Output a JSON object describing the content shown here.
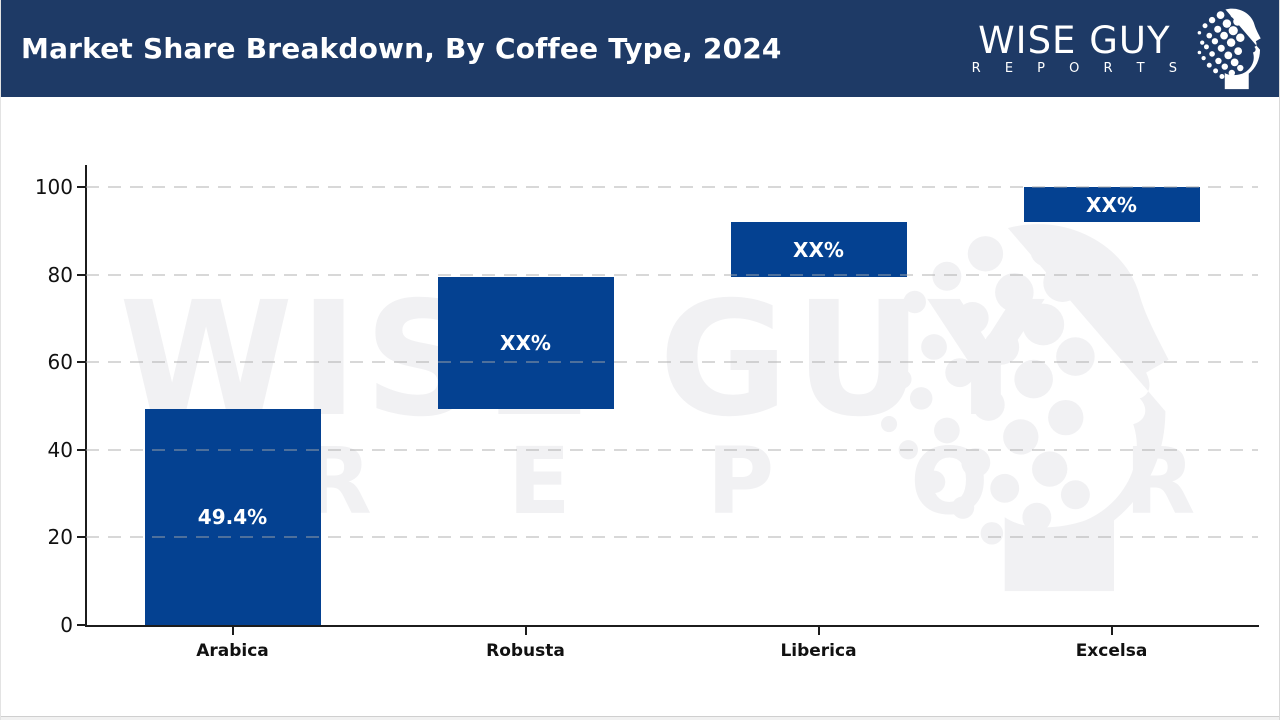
{
  "header": {
    "title": "Market Share Breakdown, By Coffee Type, 2024",
    "background_color": "#1e3a66",
    "logo": {
      "wordmark": "WISE GUY",
      "subtext": "R E P O R T S"
    }
  },
  "watermark": {
    "line1": "WISE GUY",
    "line2": "R E P O R T S"
  },
  "chart_data": {
    "type": "bar",
    "subtype": "waterfall",
    "title": "Market Share Breakdown, By Coffee Type, 2024",
    "xlabel": "",
    "ylabel": "",
    "categories": [
      "Arabica",
      "Robusta",
      "Liberica",
      "Excelsa"
    ],
    "series": [
      {
        "name": "Market Share",
        "segments": [
          {
            "category": "Arabica",
            "start": 0,
            "end": 49.4,
            "value": 49.4,
            "label": "49.4%"
          },
          {
            "category": "Robusta",
            "start": 49.4,
            "end": 79.4,
            "value": 30.0,
            "label": "XX%"
          },
          {
            "category": "Liberica",
            "start": 79.4,
            "end": 91.9,
            "value": 12.5,
            "label": "XX%"
          },
          {
            "category": "Excelsa",
            "start": 91.9,
            "end": 100.0,
            "value": 8.1,
            "label": "XX%"
          }
        ]
      }
    ],
    "ylim": [
      0,
      100
    ],
    "yticks": [
      0,
      20,
      40,
      60,
      80,
      100
    ],
    "grid": "horizontal-dashed",
    "legend": "none",
    "bar_color": "#044191",
    "bar_label_color": "#ffffff"
  }
}
